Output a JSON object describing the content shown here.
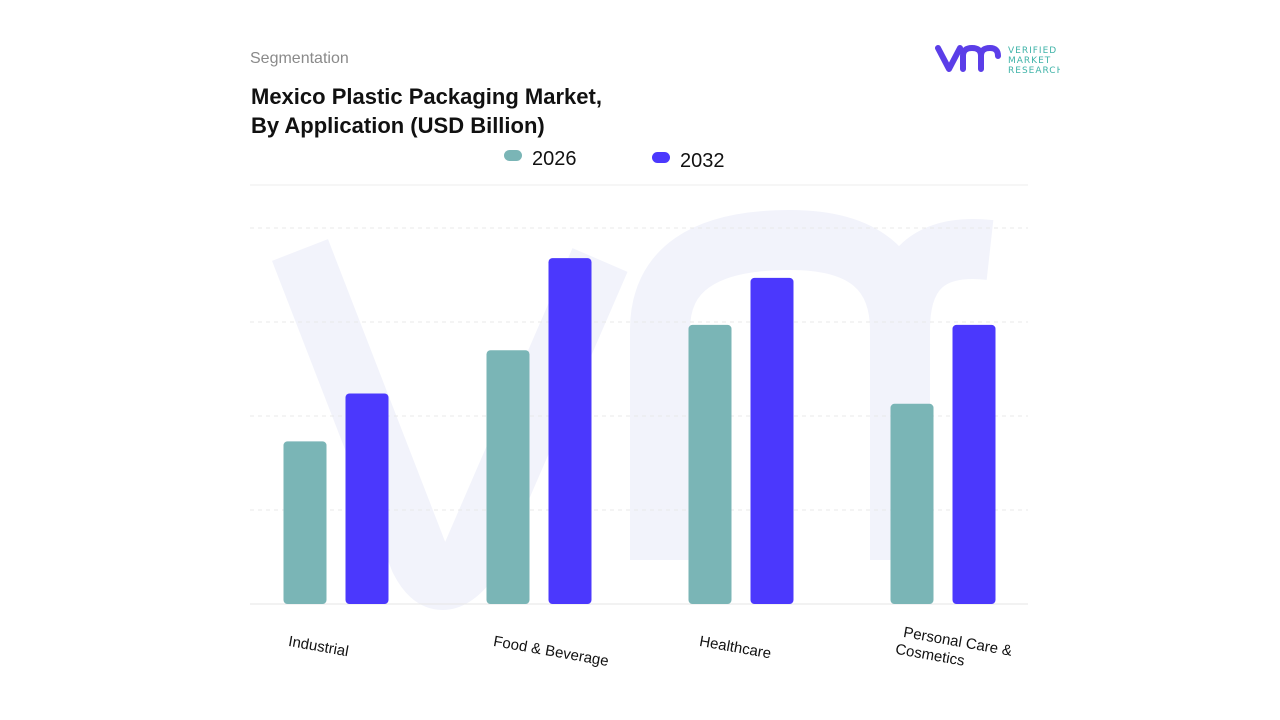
{
  "header": {
    "segment_label": "Segmentation",
    "title_line1": "Mexico Plastic Packaging Market,",
    "title_line2": "By Application (USD Billion)"
  },
  "logo": {
    "text_lines": [
      "VERIFIED",
      "MARKET",
      "RESEARCH"
    ],
    "mark": "vmr"
  },
  "colors": {
    "series_2026": "#7ab5b6",
    "series_2032": "#4b38fd",
    "watermark": "#f2f3fb",
    "logo_mark": "#5b3ee8",
    "logo_text": "#3fb3a8"
  },
  "chart_data": {
    "type": "bar",
    "title": "Mexico Plastic Packaging Market, By Application (USD Billion)",
    "categories": [
      "Industrial",
      "Food & Beverage",
      "Healthcare",
      "Personal Care & Cosmetics"
    ],
    "category_label_lines": [
      [
        "Industrial"
      ],
      [
        "Food & Beverage"
      ],
      [
        "Healthcare"
      ],
      [
        "Personal Care &",
        "Cosmetics"
      ]
    ],
    "series": [
      {
        "name": "2026",
        "values": [
          1.73,
          2.7,
          2.97,
          2.13
        ]
      },
      {
        "name": "2032",
        "values": [
          2.24,
          3.68,
          3.47,
          2.97
        ]
      }
    ],
    "ylim": [
      0,
      4
    ],
    "y_ticks_unlabeled": [
      0,
      1,
      2,
      3,
      4
    ],
    "grid": true,
    "legend": "top-center",
    "xlabel": "",
    "ylabel": ""
  }
}
